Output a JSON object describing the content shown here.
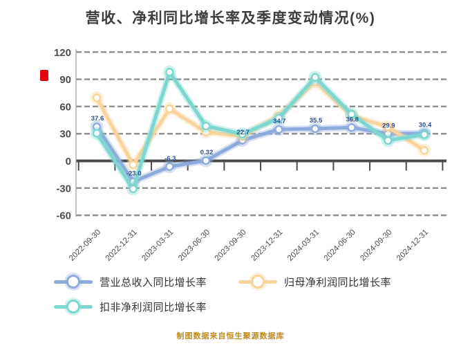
{
  "title": "营收、净利同比增长率及季度变动情况(%)",
  "source_caption": "制图数据来自恒生聚源数据库",
  "colors": {
    "revenue_line": "#8ea9db",
    "net_profit_line": "#f8d49c",
    "deducted_profit_line": "#7bd7d0",
    "grid": "#909090",
    "zero_axis": "#4b4b4b",
    "axis_text": "#4d4d4d",
    "title_text": "#3d3d3d",
    "caption_text": "#bf8a1f",
    "data_label_text": "#2e4f93",
    "red_badge": "#e7000e"
  },
  "legend": {
    "items": [
      {
        "label": "营业总收入同比增长率",
        "color": "#8ea9db"
      },
      {
        "label": "归母净利润同比增长率",
        "color": "#f8d49c"
      },
      {
        "label": "扣非净利润同比增长率",
        "color": "#7bd7d0"
      }
    ]
  },
  "chart_data": {
    "type": "line",
    "title": "营收、净利同比增长率及季度变动情况(%)",
    "categories": [
      "2022-09-30",
      "2022-12-31",
      "2023-03-31",
      "2023-06-30",
      "2023-09-30",
      "2023-12-31",
      "2024-03-31",
      "2024-06-30",
      "2024-09-30",
      "2024-12-31"
    ],
    "series": [
      {
        "name": "营业总收入同比增长率",
        "color": "#8ea9db",
        "values": [
          37.6,
          -23.0,
          -6.3,
          0.32,
          22.7,
          34.7,
          35.5,
          36.8,
          29.9,
          30.4
        ],
        "point_labels": [
          "37.6",
          "-23.0",
          "-6.3",
          "0.32",
          "22.7",
          "34.7",
          "35.5",
          "36.8",
          "29.9",
          "30.4"
        ]
      },
      {
        "name": "归母净利润同比增长率",
        "color": "#f8d49c",
        "values": [
          69.6,
          -4.4,
          57.4,
          31.9,
          27.3,
          49.5,
          87.2,
          49.8,
          37.5,
          11.5
        ]
      },
      {
        "name": "扣非净利润同比增长率",
        "color": "#7bd7d0",
        "values": [
          30.4,
          -30.9,
          98.0,
          38.5,
          29.6,
          47.0,
          92.2,
          51.5,
          22.5,
          29.0
        ]
      }
    ],
    "ylim": [
      -60,
      120
    ],
    "yticks": [
      120,
      90,
      60,
      30,
      0,
      -30,
      -60
    ],
    "grid": "horizontal-dashed",
    "legend_position": "bottom"
  }
}
